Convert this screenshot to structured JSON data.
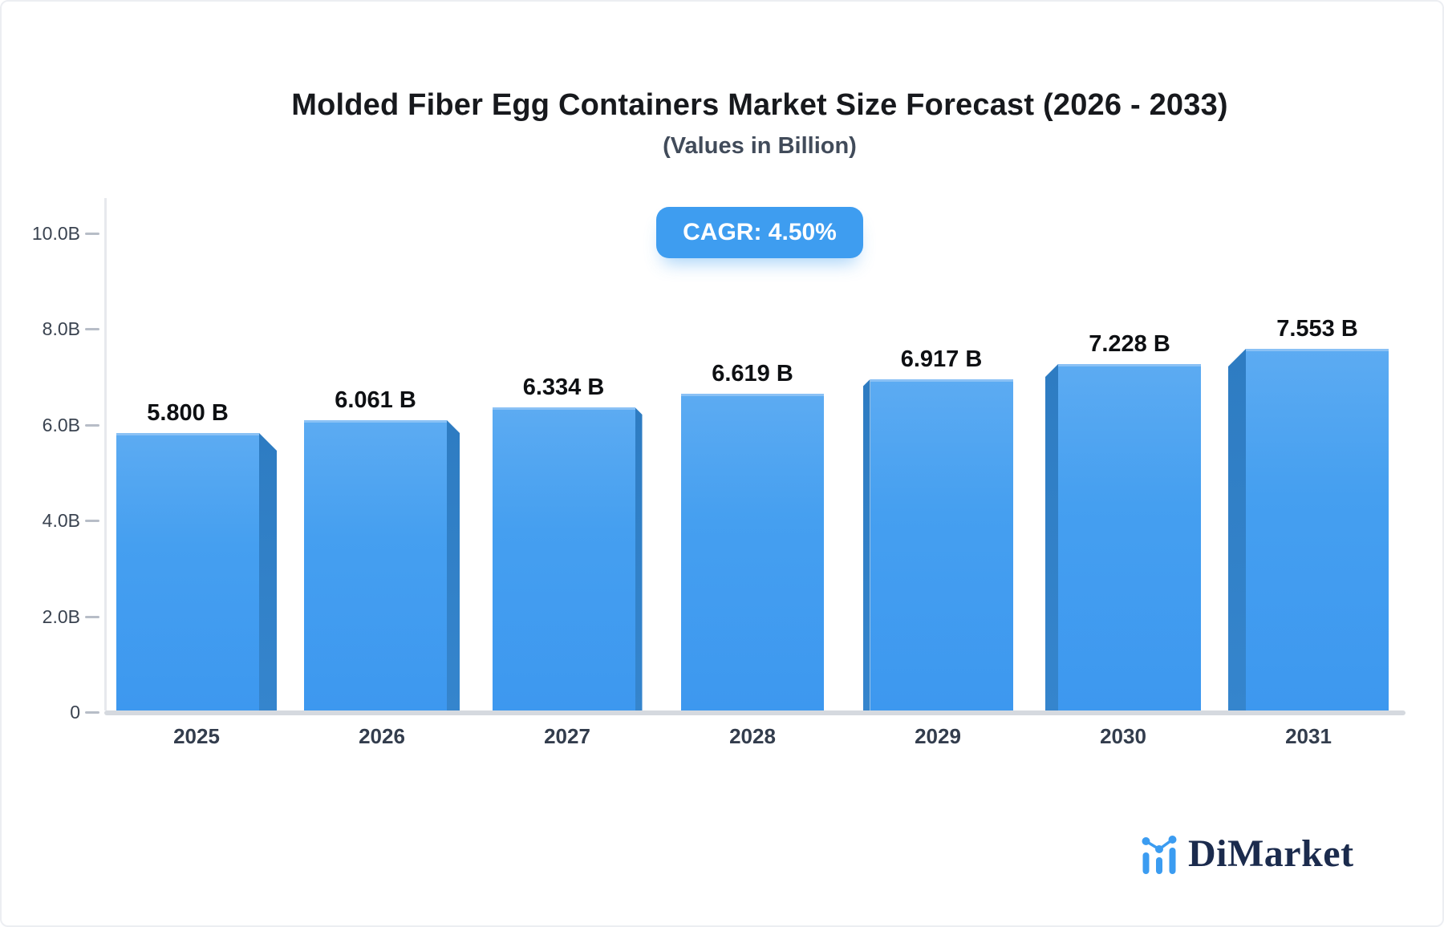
{
  "header": {
    "title": "Molded Fiber Egg Containers Market Size Forecast (2026 - 2033)",
    "subtitle": "(Values in Billion)",
    "cagr_badge": "CAGR: 4.50%"
  },
  "chart_data": {
    "type": "bar",
    "style": "3d-perspective-bars",
    "title": "Molded Fiber Egg Containers Market Size Forecast (2026 - 2033)",
    "subtitle": "(Values in Billion)",
    "cagr": "4.50%",
    "categories": [
      "2025",
      "2026",
      "2027",
      "2028",
      "2029",
      "2030",
      "2031"
    ],
    "values": [
      5.8,
      6.061,
      6.334,
      6.619,
      6.917,
      7.228,
      7.553
    ],
    "value_labels": [
      "5.800 B",
      "6.061 B",
      "6.334 B",
      "6.619 B",
      "6.917 B",
      "7.228 B",
      "7.553 B"
    ],
    "unit": "Billion",
    "ylim": [
      0,
      10
    ],
    "y_ticks": [
      {
        "value": 0,
        "label": "0"
      },
      {
        "value": 2,
        "label": "2.0B"
      },
      {
        "value": 4,
        "label": "4.0B"
      },
      {
        "value": 6,
        "label": "6.0B"
      },
      {
        "value": 8,
        "label": "8.0B"
      },
      {
        "value": 10,
        "label": "10.0B"
      }
    ],
    "grid": false,
    "legend": false
  },
  "branding": {
    "logo_text": "DiMarket",
    "logo_icon": "bar-chart-logo-icon"
  },
  "colors": {
    "bar_front": "#459ff0",
    "bar_front_light": "#5cabf2",
    "bar_side": "#2e7cc2",
    "badge_bg": "#3e9df0",
    "badge_text": "#ffffff",
    "logo_navy": "#1b2b4d",
    "axis_line": "#d5d9df",
    "tick_text": "#3a4350",
    "label_text": "#0e1013"
  }
}
